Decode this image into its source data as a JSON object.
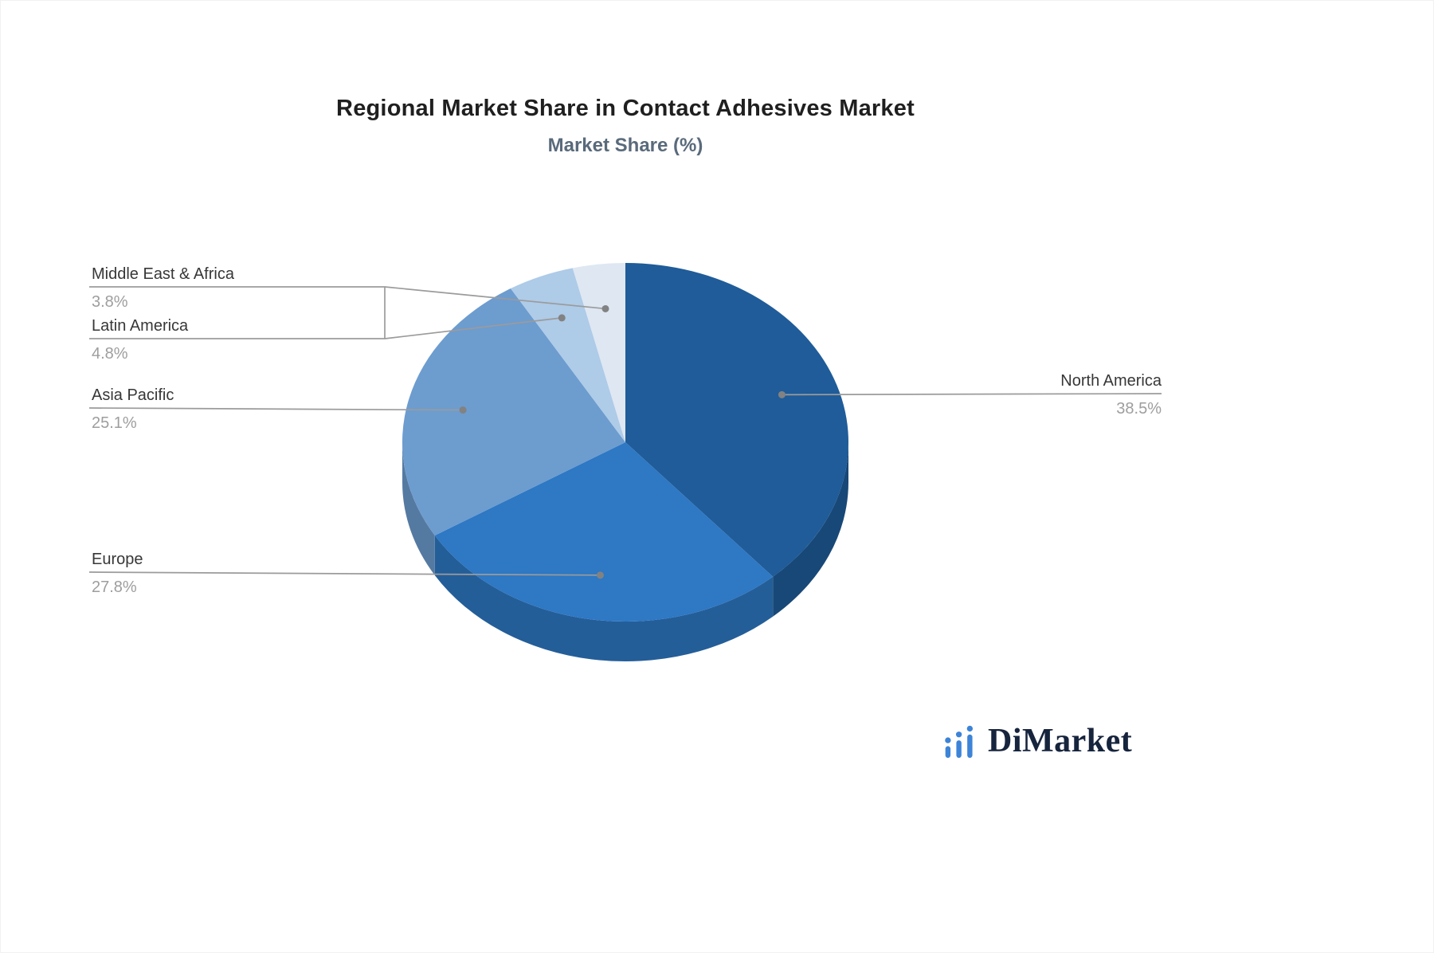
{
  "title": "Regional Market Share in Contact Adhesives Market",
  "subtitle": "Market Share (%)",
  "background": "#FFFFFF",
  "brand": {
    "name": "DiMarket",
    "icon_color": "#3C84D8",
    "text_color": "#16243D"
  },
  "chart_data": {
    "type": "pie",
    "style": "3d",
    "title": "Regional Market Share in Contact Adhesives Market",
    "subtitle": "Market Share (%)",
    "unit": "%",
    "start_angle_deg": 0,
    "direction": "clockwise",
    "connector_color": "#9B9B9B",
    "connector_dot_color": "#828282",
    "slices": [
      {
        "label": "North America",
        "value": 38.5,
        "display": "38.5%",
        "color": "#1F5C99"
      },
      {
        "label": "Europe",
        "value": 27.8,
        "display": "27.8%",
        "color": "#2E78C4"
      },
      {
        "label": "Asia Pacific",
        "value": 25.1,
        "display": "25.1%",
        "color": "#6D9CCF"
      },
      {
        "label": "Latin America",
        "value": 4.8,
        "display": "4.8%",
        "color": "#AECBE8"
      },
      {
        "label": "Middle East & Africa",
        "value": 3.8,
        "display": "3.8%",
        "color": "#DEE7F2"
      }
    ]
  }
}
